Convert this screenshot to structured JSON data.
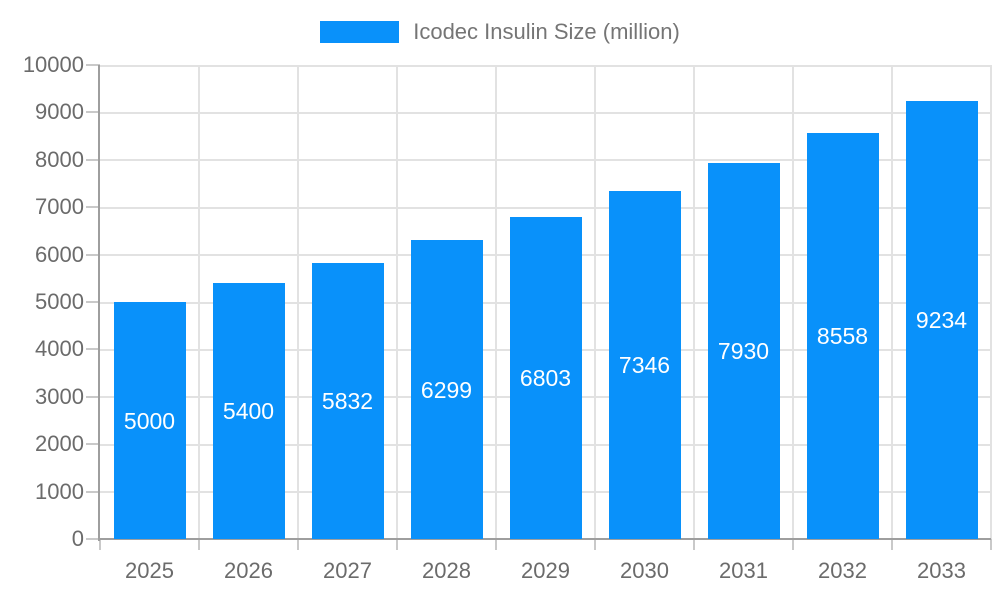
{
  "legend": {
    "label": "Icodec Insulin Size (million)"
  },
  "colors": {
    "bar": "#0991FA",
    "bar_label_text": "#ffffff",
    "axis_text": "#6b6b6b",
    "legend_text": "#757575",
    "grid_line": "#e2e2e2",
    "axis_line": "#9e9e9e",
    "tick_line": "#c9c9c9",
    "background": "#ffffff"
  },
  "chart_data": {
    "type": "bar",
    "title": "Icodec Insulin Size (million)",
    "legend_position": "top",
    "categories": [
      "2025",
      "2026",
      "2027",
      "2028",
      "2029",
      "2030",
      "2031",
      "2032",
      "2033"
    ],
    "values": [
      5000,
      5400,
      5832,
      6299,
      6803,
      7346,
      7930,
      8558,
      9234
    ],
    "data_labels": [
      "5000",
      "5400",
      "5832",
      "6299",
      "6803",
      "7346",
      "7930",
      "8558",
      "9234"
    ],
    "xlabel": "",
    "ylabel": "",
    "ylim": [
      0,
      10000
    ],
    "y_ticks": [
      0,
      1000,
      2000,
      3000,
      4000,
      5000,
      6000,
      7000,
      8000,
      9000,
      10000
    ],
    "grid": "on",
    "value_labels_inside": true,
    "value_label_position": "center"
  }
}
